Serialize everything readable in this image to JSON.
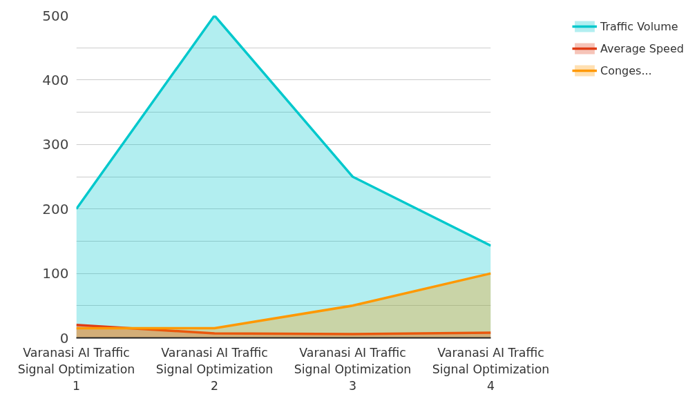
{
  "chart_data": {
    "type": "area",
    "categories": [
      "Varanasi AI Traffic Signal Optimization 1",
      "Varanasi AI Traffic Signal Optimization 2",
      "Varanasi AI Traffic Signal Optimization 3",
      "Varanasi AI Traffic Signal Optimization 4"
    ],
    "series": [
      {
        "name": "Traffic Volume",
        "color": "#00c8cc",
        "values": [
          200,
          500,
          250,
          143
        ]
      },
      {
        "name": "Average Speed",
        "color": "#e03c14",
        "values": [
          20,
          7,
          6,
          8
        ]
      },
      {
        "name": "Conges...",
        "color": "#ff9800",
        "values": [
          15,
          15,
          50,
          100
        ]
      }
    ],
    "ylim": [
      0,
      500
    ],
    "yticks": [
      0,
      {
        "value": 50,
        "label": null
      },
      100,
      {
        "value": 150,
        "label": null
      },
      200,
      {
        "value": 250,
        "label": null
      },
      300,
      {
        "value": 350,
        "label": null
      },
      400,
      {
        "value": 450,
        "label": null
      },
      500
    ],
    "grid": "y",
    "legend": "top right",
    "marker": "none",
    "line_style": "solid"
  }
}
